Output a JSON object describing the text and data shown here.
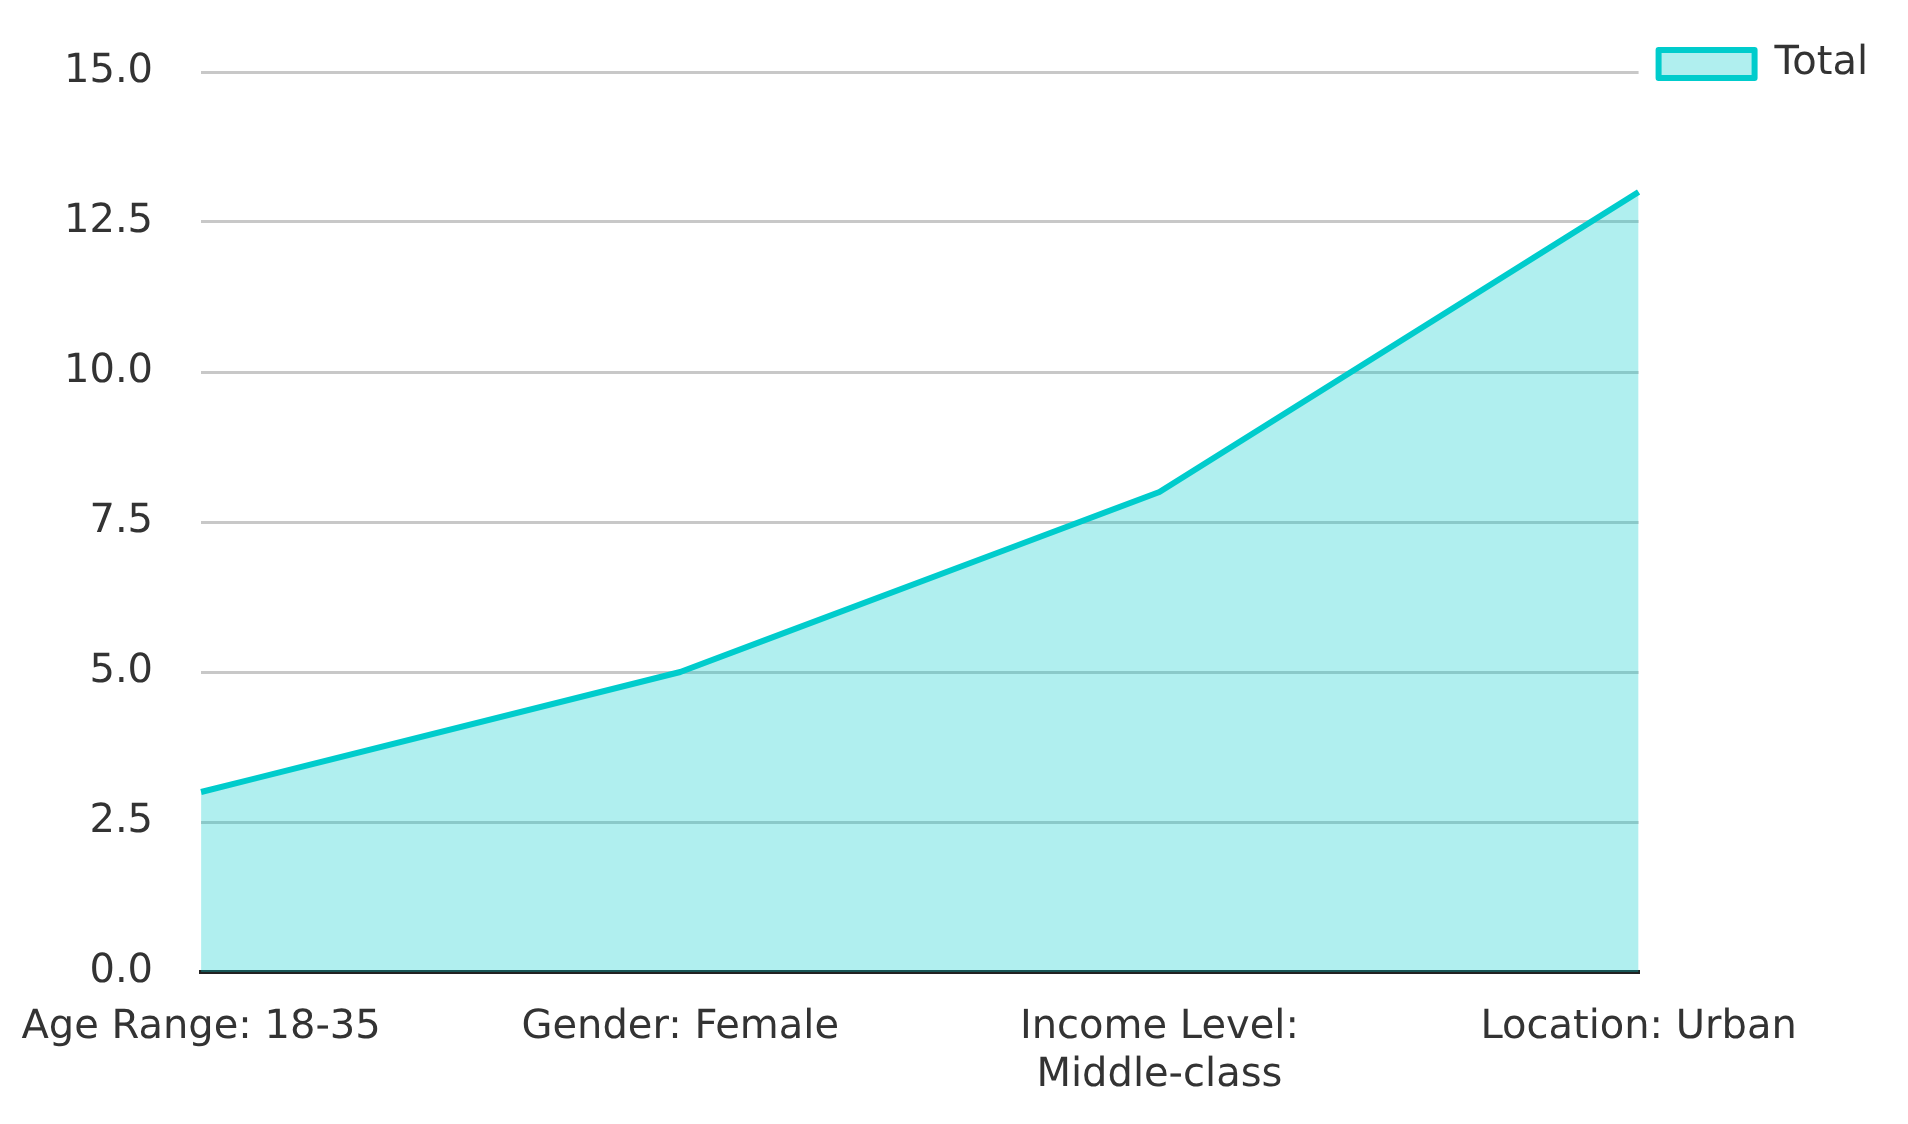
{
  "chart_data": {
    "type": "area",
    "categories": [
      "Age Range: 18-35",
      "Gender: Female",
      "Income Level: Middle-class",
      "Location: Urban"
    ],
    "series": [
      {
        "name": "Total",
        "color": "#00cccc",
        "values": [
          3,
          5,
          8,
          13
        ]
      }
    ],
    "ylim": [
      0,
      15
    ],
    "yticks": [
      {
        "value": 0,
        "label": "0.0"
      },
      {
        "value": 2.5,
        "label": "2.5"
      },
      {
        "value": 5,
        "label": "5.0"
      },
      {
        "value": 7.5,
        "label": "7.5"
      },
      {
        "value": 10,
        "label": "10.0"
      },
      {
        "value": 12.5,
        "label": "12.5"
      },
      {
        "value": 15,
        "label": "15.0"
      }
    ],
    "grid": "y",
    "legend": "top right",
    "marker": "none",
    "line_style": "solid"
  }
}
